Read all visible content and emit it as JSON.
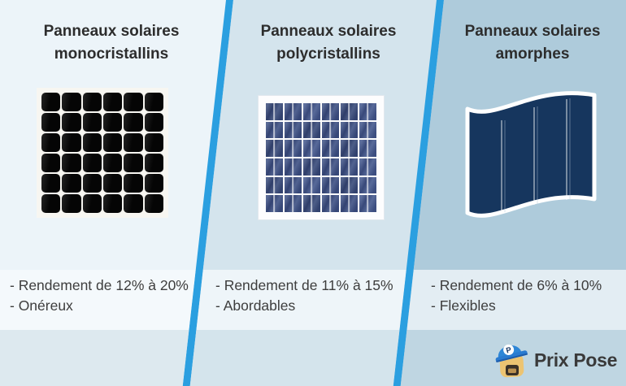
{
  "columns": [
    {
      "id": "monocristallins",
      "title_line1": "Panneaux solaires",
      "title_line2": "monocristallins",
      "panel_type": "monocrystalline-panel",
      "features": [
        "- Rendement de 12% à 20%",
        "- Onéreux"
      ]
    },
    {
      "id": "polycristallins",
      "title_line1": "Panneaux solaires",
      "title_line2": "polycristallins",
      "panel_type": "polycrystalline-panel",
      "features": [
        "- Rendement de 11% à 15%",
        "- Abordables"
      ]
    },
    {
      "id": "amorphes",
      "title_line1": "Panneaux solaires",
      "title_line2": "amorphes",
      "panel_type": "amorphous-panel",
      "features": [
        "- Rendement de 6% à 10%",
        "- Flexibles"
      ]
    }
  ],
  "brand": {
    "name": "Prix Pose",
    "logo_letter": "P"
  },
  "colors": {
    "stripe": "#2b9fe0",
    "col1_bg": "#ecf4f9",
    "col1_band": "#f4f9fc",
    "col1_footer": "#dde9ef",
    "col2_bg": "#d4e4ed",
    "col2_band": "#eef5f9",
    "col2_footer": "#d4e4ec",
    "col3_bg": "#aecbdb",
    "col3_band": "#e3edf3",
    "col3_footer": "#bfd6e2",
    "panel_mono_cell": "#0b0b0b",
    "panel_poly_cell": "#3e5184",
    "panel_amorphous": "#16365e",
    "text_dark": "#2d2d2d"
  }
}
